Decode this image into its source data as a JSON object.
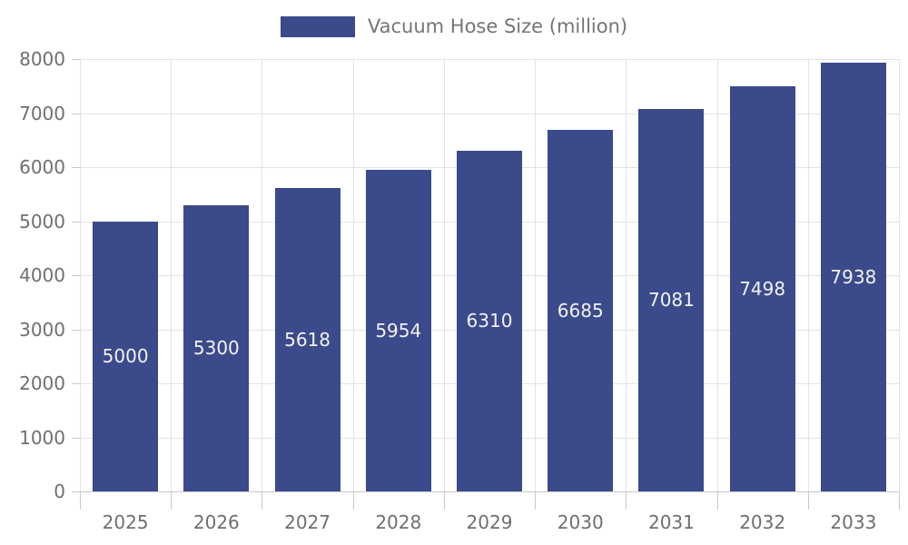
{
  "legend": {
    "items": [
      {
        "label": "Vacuum Hose Size (million)",
        "color": "#3A4A8A"
      }
    ]
  },
  "chart_data": {
    "type": "bar",
    "title": "",
    "xlabel": "",
    "ylabel": "",
    "categories": [
      "2025",
      "2026",
      "2027",
      "2028",
      "2029",
      "2030",
      "2031",
      "2032",
      "2033"
    ],
    "series": [
      {
        "name": "Vacuum Hose Size (million)",
        "color": "#3A4A8A",
        "values": [
          5000,
          5300,
          5618,
          5954,
          6310,
          6685,
          7081,
          7498,
          7938
        ]
      }
    ],
    "value_labels": [
      5000,
      5300,
      5618,
      5954,
      6310,
      6685,
      7081,
      7498,
      7938
    ],
    "value_label_position": "inside-center",
    "value_label_color": "#f2f2f2",
    "ylim": [
      0,
      8000
    ],
    "yticks": [
      0,
      1000,
      2000,
      3000,
      4000,
      5000,
      6000,
      7000,
      8000
    ],
    "grid": true,
    "legend_position": "top-center",
    "axis_text_color": "#6f6f6f",
    "gridline_color": "#e3e3e3",
    "axis_line_color": "#c9c9c9",
    "background_color": "#ffffff"
  }
}
